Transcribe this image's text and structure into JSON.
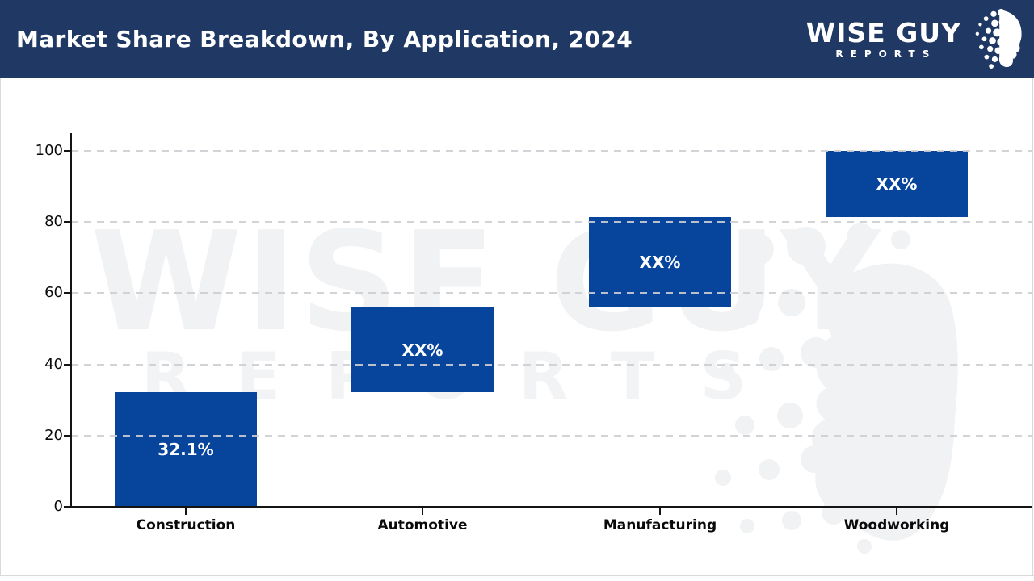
{
  "header": {
    "title": "Market Share Breakdown, By Application, 2024",
    "bg_color": "#1f3864",
    "logo": {
      "line1": "WISE GUY",
      "line2": "REPORTS",
      "icon": "dotted-head-profile-icon"
    }
  },
  "watermark": {
    "line1": "WISE GUY",
    "line2": "REPORTS",
    "icon": "dotted-head-profile-watermark"
  },
  "chart_data": {
    "type": "bar",
    "subtype": "waterfall-floating-bars",
    "title": "Market Share Breakdown, By Application, 2024",
    "categories": [
      "Construction",
      "Automotive",
      "Manufacturing",
      "Woodworking"
    ],
    "bars": [
      {
        "category": "Construction",
        "start": 0,
        "end": 32.1,
        "label": "32.1%"
      },
      {
        "category": "Automotive",
        "start": 32.1,
        "end": 56,
        "label": "XX%"
      },
      {
        "category": "Manufacturing",
        "start": 56,
        "end": 81.5,
        "label": "XX%"
      },
      {
        "category": "Woodworking",
        "start": 81.5,
        "end": 100,
        "label": "XX%"
      }
    ],
    "xlabel": "",
    "ylabel": "",
    "yticks": [
      0,
      20,
      40,
      60,
      80,
      100
    ],
    "ylim": [
      0,
      105
    ],
    "grid": "horizontal-dashed",
    "legend": "none",
    "bar_color": "#07459c",
    "bar_label_color": "#ffffff",
    "axis_color": "#141414",
    "gridline_color": "#d9d9d9"
  }
}
